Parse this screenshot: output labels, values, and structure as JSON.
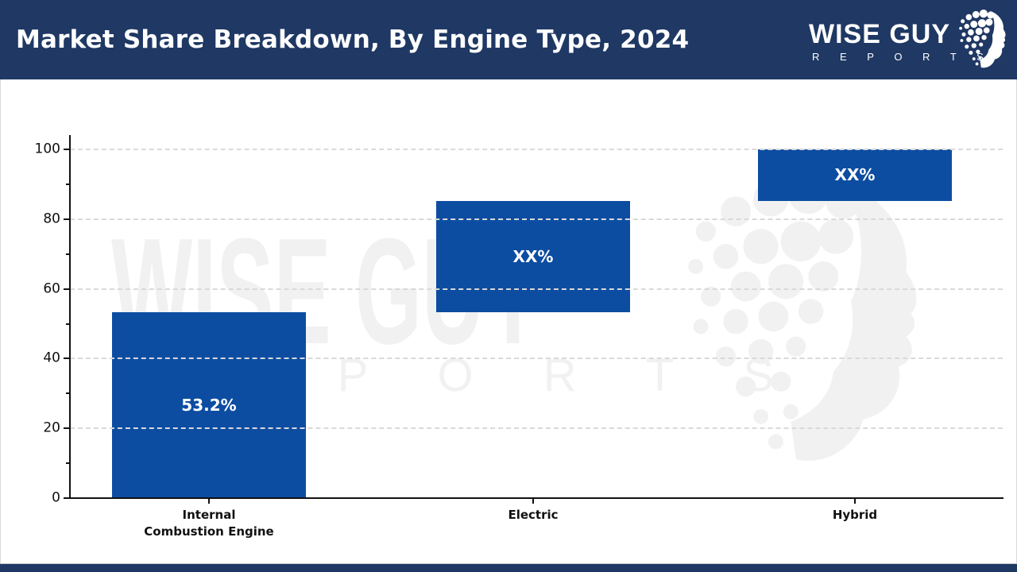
{
  "header": {
    "title": "Market Share Breakdown, By Engine Type, 2024",
    "logo": {
      "line1": "WISE GUY",
      "line2": "R E P O R T S"
    }
  },
  "watermark": {
    "line1": "WISE GUY",
    "line2": "R E P O R T S"
  },
  "colors": {
    "header_bg": "#1f3864",
    "footer_bg": "#1f3864",
    "bar": "#0c4da2",
    "bar_label": "#ffffff",
    "grid": "#d9d9d9",
    "watermark": "#f1f1f1"
  },
  "chart_data": {
    "type": "bar",
    "subtype": "waterfall-floating-bars",
    "title": "Market Share Breakdown, By Engine Type, 2024",
    "categories": [
      "Internal Combustion Engine",
      "Electric",
      "Hybrid"
    ],
    "category_label_lines": [
      [
        "Internal",
        "Combustion Engine"
      ],
      [
        "Electric"
      ],
      [
        "Hybrid"
      ]
    ],
    "segments": [
      {
        "category": "Internal Combustion Engine",
        "start": 0,
        "end": 53.2,
        "label": "53.2%"
      },
      {
        "category": "Electric",
        "start": 53.2,
        "end": 85.2,
        "label": "XX%"
      },
      {
        "category": "Hybrid",
        "start": 85.2,
        "end": 100,
        "label": "XX%"
      }
    ],
    "xlabel": "",
    "ylabel": "",
    "ylim": [
      0,
      100
    ],
    "yticks": [
      0,
      20,
      40,
      60,
      80,
      100
    ],
    "minor_ytick_step": 10,
    "grid": "horizontal-dashed",
    "legend": "none",
    "bar_color": "#0c4da2",
    "label_color": "#ffffff"
  }
}
